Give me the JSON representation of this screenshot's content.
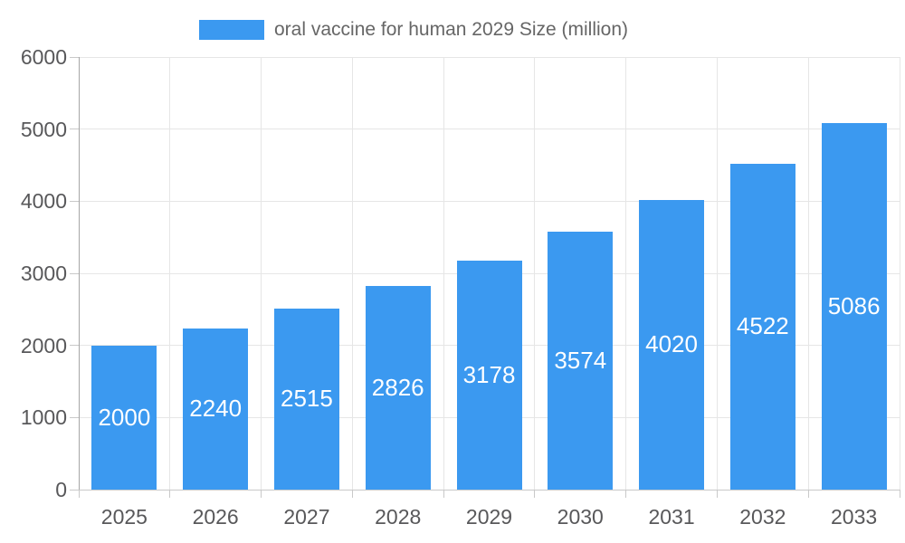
{
  "legend": {
    "label": "oral vaccine for human 2029 Size (million)"
  },
  "colors": {
    "bar": "#3b99f0",
    "grid_line": "#e6e6e6",
    "axis_line": "#a6a6a6",
    "tick_mark": "#c9c9c9",
    "baseline": "#c9c9c9",
    "axis_text": "#58585a",
    "legend_text": "#666666",
    "value_text": "#ffffff",
    "background": "#ffffff"
  },
  "chart_data": {
    "type": "bar",
    "title": "",
    "series_name": "oral vaccine for human 2029 Size (million)",
    "legend_position": "top",
    "categories": [
      "2025",
      "2026",
      "2027",
      "2028",
      "2029",
      "2030",
      "2031",
      "2032",
      "2033"
    ],
    "values": [
      2000,
      2240,
      2515,
      2826,
      3178,
      3574,
      4020,
      4522,
      5086
    ],
    "xlabel": "",
    "ylabel": "",
    "ylim": [
      0,
      6000
    ],
    "yticks": [
      0,
      1000,
      2000,
      3000,
      4000,
      5000,
      6000
    ],
    "grid": true,
    "value_labels": "inside-center-white"
  }
}
